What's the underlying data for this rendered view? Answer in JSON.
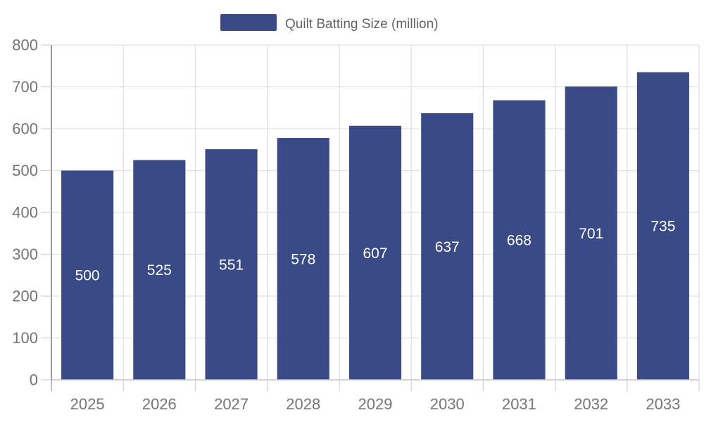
{
  "chart_data": {
    "type": "bar",
    "title": "Quilt Batting Size (million)",
    "legend": {
      "label": "Quilt Batting Size (million)",
      "position": "top"
    },
    "categories": [
      "2025",
      "2026",
      "2027",
      "2028",
      "2029",
      "2030",
      "2031",
      "2032",
      "2033"
    ],
    "series": [
      {
        "name": "Quilt Batting Size (million)",
        "values": [
          500,
          525,
          551,
          578,
          607,
          637,
          668,
          701,
          735
        ]
      }
    ],
    "xlabel": "",
    "ylabel": "",
    "ylim": [
      0,
      800
    ],
    "ytick_step": 100,
    "ytick_labels": [
      "0",
      "100",
      "200",
      "300",
      "400",
      "500",
      "600",
      "700",
      "800"
    ],
    "grid": "on",
    "value_labels": "inside-center",
    "colors": {
      "bar": "#3a4a87",
      "value_label": "#ffffff",
      "axis_label": "#757575",
      "legend_text": "#636363",
      "gridline": "#e0e0e0",
      "axis_line": "#8c8c8c",
      "bottom_line": "#c4c4c4",
      "tick": "#d0d0d0",
      "background": "#ffffff"
    }
  }
}
